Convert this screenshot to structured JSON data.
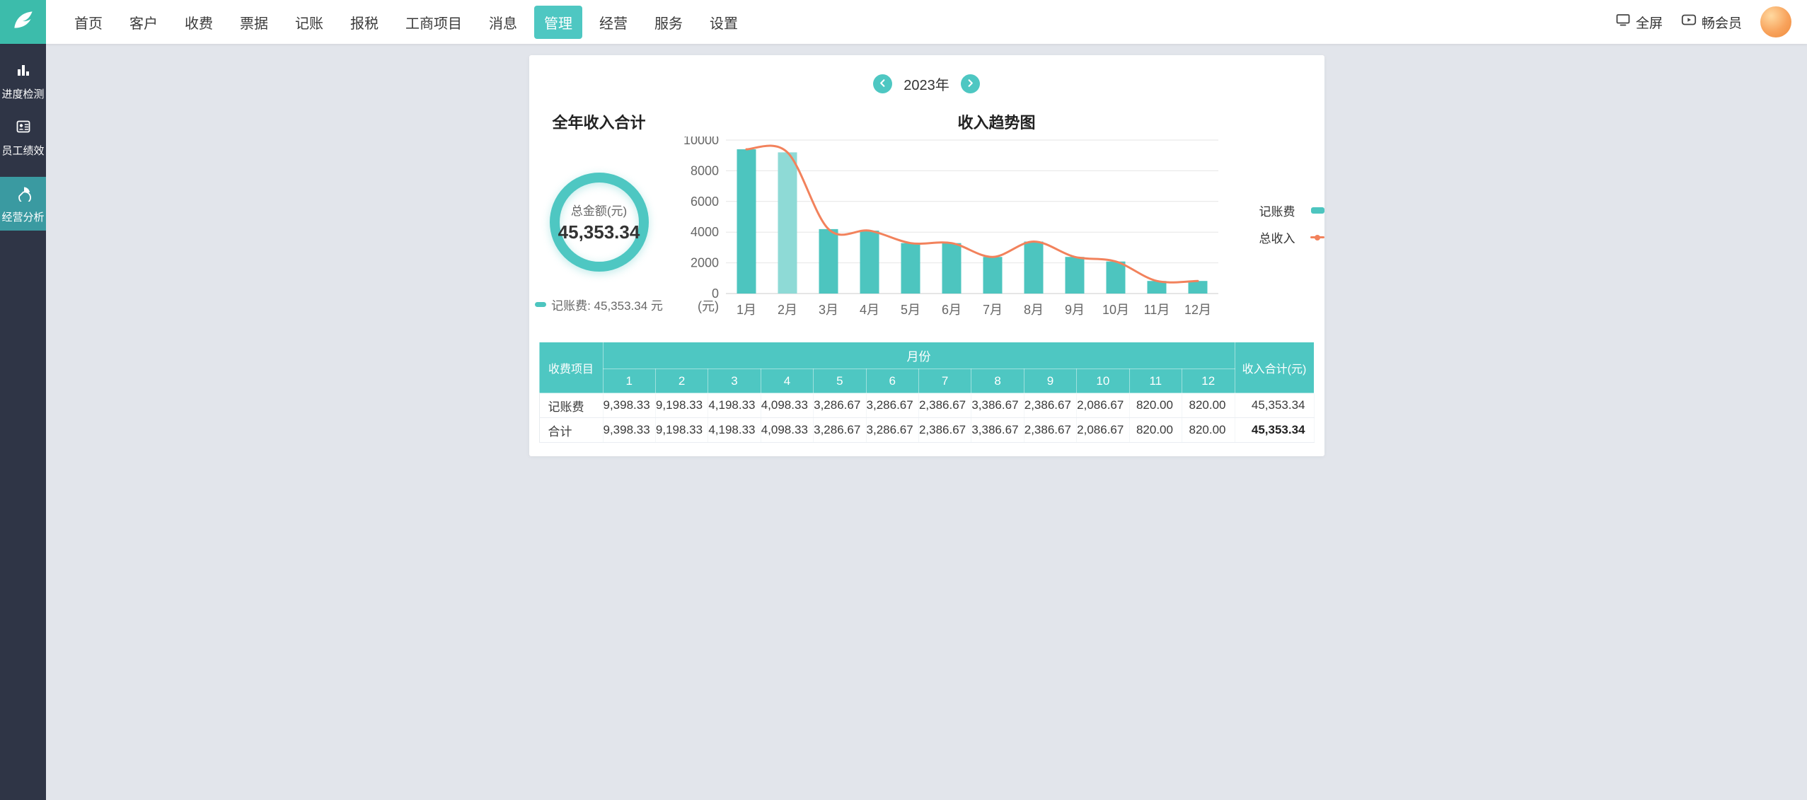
{
  "colors": {
    "accent": "#4ec7c2",
    "logo_teal": "#3cbcab",
    "bar": "#4dc5bf",
    "bar_highlight": "#8edad6",
    "line": "#f2825c",
    "sidebar_bg": "#2f3546",
    "sidebar_active": "#3a9aa1",
    "page_bg": "#e2e5eb",
    "grid": "#e6e6e6"
  },
  "topbar": {
    "nav": [
      {
        "label": "首页"
      },
      {
        "label": "客户"
      },
      {
        "label": "收费"
      },
      {
        "label": "票据"
      },
      {
        "label": "记账"
      },
      {
        "label": "报税"
      },
      {
        "label": "工商项目"
      },
      {
        "label": "消息"
      },
      {
        "label": "管理",
        "active": true
      },
      {
        "label": "经营"
      },
      {
        "label": "服务"
      },
      {
        "label": "设置"
      }
    ],
    "fullscreen_label": "全屏",
    "member_label": "畅会员"
  },
  "sidebar": {
    "items": [
      {
        "label": "进度检测",
        "icon": "bar-chart-icon"
      },
      {
        "label": "员工绩效",
        "icon": "badge-icon"
      },
      {
        "label": "经营分析",
        "icon": "pie-chart-icon",
        "active": true
      }
    ]
  },
  "year_nav": {
    "year": "2023年"
  },
  "summary": {
    "title": "全年收入合计",
    "donut_label": "总金额(元)",
    "donut_value": "45,353.34",
    "legend_text": "记账费: 45,353.34 元"
  },
  "chart": {
    "title": "收入趋势图"
  },
  "chart_data": {
    "type": "bar",
    "title": "收入趋势图",
    "categories": [
      "1月",
      "2月",
      "3月",
      "4月",
      "5月",
      "6月",
      "7月",
      "8月",
      "9月",
      "10月",
      "11月",
      "12月"
    ],
    "series": [
      {
        "name": "记账费",
        "type": "bar",
        "values": [
          9398.33,
          9198.33,
          4198.33,
          4098.33,
          3286.67,
          3286.67,
          2386.67,
          3386.67,
          2386.67,
          2086.67,
          820.0,
          820.0
        ]
      },
      {
        "name": "总收入",
        "type": "line",
        "values": [
          9398.33,
          9198.33,
          4198.33,
          4098.33,
          3286.67,
          3286.67,
          2386.67,
          3386.67,
          2386.67,
          2086.67,
          820.0,
          820.0
        ]
      }
    ],
    "xlabel": "",
    "ylabel": "(元)",
    "ylim": [
      0,
      10000
    ],
    "yticks": [
      0,
      2000,
      4000,
      6000,
      8000,
      10000
    ],
    "grid": true,
    "legend_position": "right",
    "highlight_bar_index": 1
  },
  "table": {
    "corner_header": "收费项目",
    "month_header": "月份",
    "total_header": "收入合计(元)",
    "month_cols": [
      "1",
      "2",
      "3",
      "4",
      "5",
      "6",
      "7",
      "8",
      "9",
      "10",
      "11",
      "12"
    ],
    "rows": [
      {
        "label": "记账费",
        "values": [
          "9,398.33",
          "9,198.33",
          "4,198.33",
          "4,098.33",
          "3,286.67",
          "3,286.67",
          "2,386.67",
          "3,386.67",
          "2,386.67",
          "2,086.67",
          "820.00",
          "820.00"
        ],
        "total": "45,353.34",
        "bold_total": false
      },
      {
        "label": "合计",
        "values": [
          "9,398.33",
          "9,198.33",
          "4,198.33",
          "4,098.33",
          "3,286.67",
          "3,286.67",
          "2,386.67",
          "3,386.67",
          "2,386.67",
          "2,086.67",
          "820.00",
          "820.00"
        ],
        "total": "45,353.34",
        "bold_total": true
      }
    ]
  }
}
